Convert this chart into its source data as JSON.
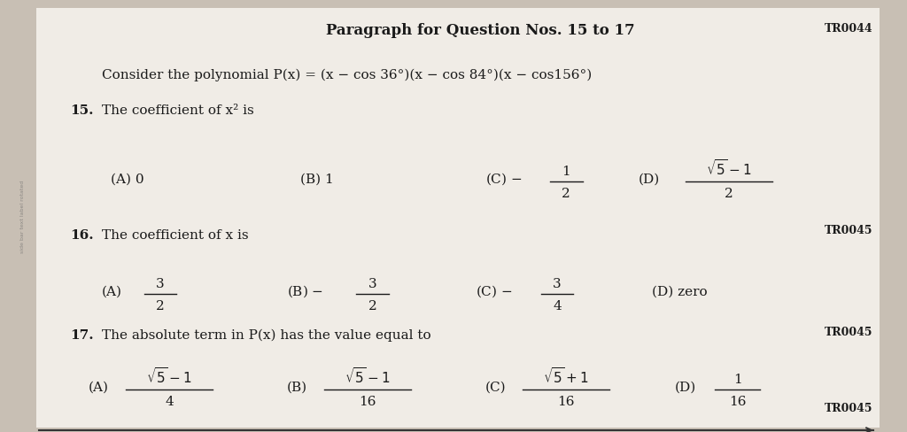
{
  "background_color": "#c8bfb4",
  "paper_color": "#f0ece6",
  "title": "Paragraph for Question Nos. 15 to 17",
  "tr0044": "TR0044",
  "tr0045_1": "TR0045",
  "tr0045_2": "TR0045",
  "tr0045_3": "TR0045",
  "paragraph": "Consider the polynomial P(x) = (x − cos 36°)(x − cos 84°)(x − cos156°)",
  "q15_num": "15.",
  "q15_text": "The coefficient of x² is",
  "q15_A": "(A) 0",
  "q15_B": "(B) 1",
  "q16_num": "16.",
  "q16_text": "The coefficient of x is",
  "q16_D": "(D) zero",
  "q17_num": "17.",
  "q17_text": "The absolute term in P(x) has the value equal to"
}
